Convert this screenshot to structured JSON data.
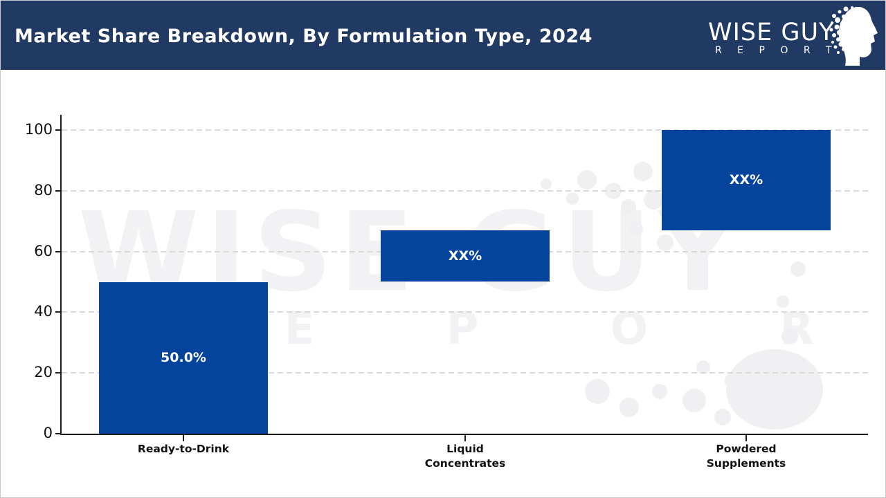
{
  "header": {
    "title": "Market Share Breakdown, By Formulation Type, 2024",
    "bg_color": "#213a63",
    "logo": {
      "line1": "WISE GUY",
      "line2": "R E P O R T S",
      "face_icon": "dotted-head-profile"
    }
  },
  "watermark": {
    "line1": "WISE GUY",
    "line2": "R E P O R T S",
    "color": "#f2f2f4"
  },
  "chart_data": {
    "type": "bar",
    "subtype": "floating-waterfall",
    "title": "Market Share Breakdown, By Formulation Type, 2024",
    "categories": [
      "Ready-to-Drink",
      "Liquid Concentrates",
      "Powdered Supplements"
    ],
    "bars": [
      {
        "category_lines": [
          "Ready-to-Drink"
        ],
        "start": 0,
        "end": 50,
        "label": "50.0%"
      },
      {
        "category_lines": [
          "Liquid",
          "Concentrates"
        ],
        "start": 50,
        "end": 67,
        "label": "XX%"
      },
      {
        "category_lines": [
          "Powdered",
          "Supplements"
        ],
        "start": 67,
        "end": 100,
        "label": "XX%"
      }
    ],
    "values_pct": [
      50.0,
      17.0,
      33.0
    ],
    "yticks": [
      0,
      20,
      40,
      60,
      80,
      100
    ],
    "ylim": [
      0,
      105
    ],
    "xlabel": "",
    "ylabel": "",
    "grid": "horizontal-dashed",
    "legend": "none",
    "bar_color": "#04449c",
    "bar_label_color": "#ffffff"
  }
}
